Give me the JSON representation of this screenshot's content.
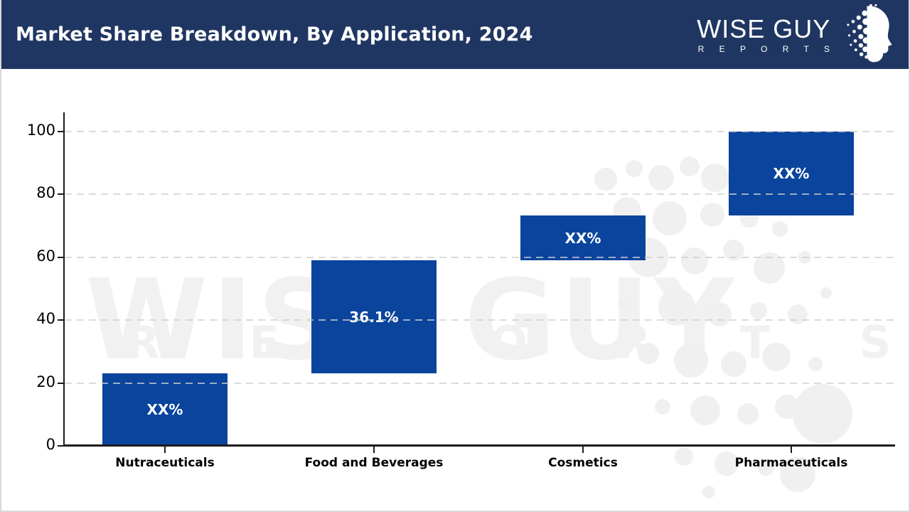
{
  "header": {
    "title": "Market Share Breakdown, By Application, 2024",
    "logo": {
      "line1": "WISE GUY",
      "line2": "R E P O R T S"
    }
  },
  "watermark": {
    "line1": "WISE GUY",
    "line2": "R E P O R T S"
  },
  "chart_data": {
    "type": "bar",
    "subtype": "waterfall",
    "title": "Market Share Breakdown, By Application, 2024",
    "categories": [
      "Nutraceuticals",
      "Food and Beverages",
      "Cosmetics",
      "Pharmaceuticals"
    ],
    "segments": [
      {
        "category": "Nutraceuticals",
        "start": 0,
        "end": 23.0,
        "label": "XX%"
      },
      {
        "category": "Food and Beverages",
        "start": 23.0,
        "end": 59.1,
        "label": "36.1%"
      },
      {
        "category": "Cosmetics",
        "start": 59.1,
        "end": 73.2,
        "label": "XX%"
      },
      {
        "category": "Pharmaceuticals",
        "start": 73.2,
        "end": 100.0,
        "label": "XX%"
      }
    ],
    "y_ticks": [
      0,
      20,
      40,
      60,
      80,
      100
    ],
    "ylim": [
      0,
      105
    ],
    "xlabel": "",
    "ylabel": "",
    "grid": "horizontal-dashed-over-bars",
    "legend": "none"
  },
  "colors": {
    "header_bg": "#203662",
    "bar": "#0a449c",
    "bar_label": "#ffffff",
    "grid": "#cfcfcf",
    "axis": "#1c1c1c",
    "watermark": "#f1f1f1",
    "frame_border": "#d9d9d9"
  }
}
